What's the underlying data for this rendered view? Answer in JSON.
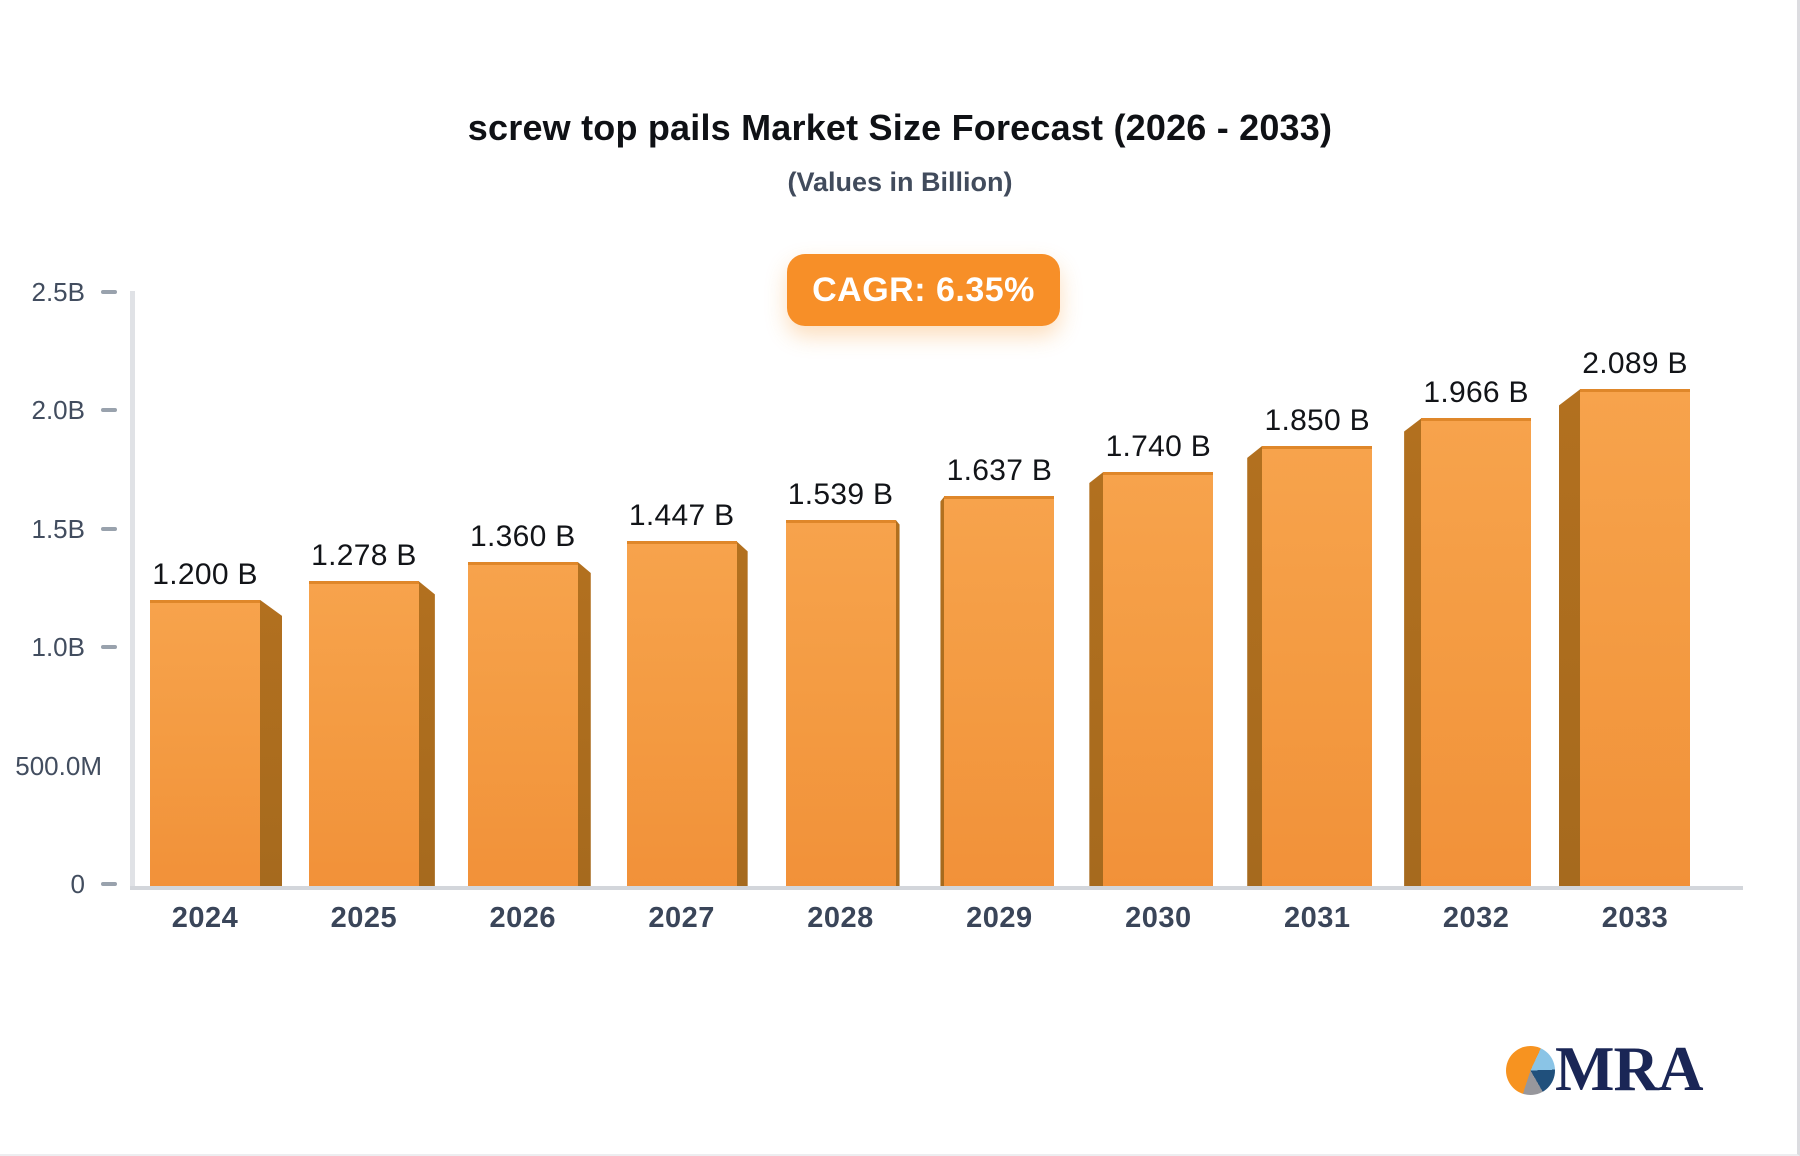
{
  "header": {
    "title": "screw top pails Market Size Forecast (2026 - 2033)",
    "subtitle": "(Values in Billion)"
  },
  "badge": {
    "label": "CAGR: 6.35%",
    "bg_color": "#f78f28",
    "text_color": "#ffffff"
  },
  "chart_data": {
    "type": "bar",
    "title": "screw top pails Market Size Forecast (2026 - 2033)",
    "subtitle": "(Values in Billion)",
    "cagr_pct": 6.35,
    "unit": "Billion",
    "categories": [
      "2024",
      "2025",
      "2026",
      "2027",
      "2028",
      "2029",
      "2030",
      "2031",
      "2032",
      "2033"
    ],
    "values": [
      1.2,
      1.278,
      1.36,
      1.447,
      1.539,
      1.637,
      1.74,
      1.85,
      1.966,
      2.089
    ],
    "value_labels": [
      "1.200 B",
      "1.278 B",
      "1.360 B",
      "1.447 B",
      "1.539 B",
      "1.637 B",
      "1.740 B",
      "1.850 B",
      "1.966 B",
      "2.089 B"
    ],
    "xlabel": "",
    "ylabel": "",
    "ylim": [
      0,
      2.5
    ],
    "grid": false,
    "legend": false,
    "y_ticks": [
      {
        "label": "2.5B",
        "value": 2.5,
        "dash": true
      },
      {
        "label": "2.0B",
        "value": 2.0,
        "dash": true
      },
      {
        "label": "1.5B",
        "value": 1.5,
        "dash": true
      },
      {
        "label": "1.0B",
        "value": 1.0,
        "dash": true
      },
      {
        "label": "500.0M",
        "value": 0.5,
        "dash": false
      },
      {
        "label": "0",
        "value": 0.0,
        "dash": true
      }
    ],
    "colors": {
      "bar_face_top": "#f7a34c",
      "bar_face_bottom": "#f29139",
      "bar_top_edge": "#df872a",
      "bar_side": "#ad6d20",
      "axis_line": "#e0e2e6",
      "tick_text": "#424d5f",
      "value_text": "#121418",
      "year_text": "#3a4559",
      "accent_orange": "#f78f28"
    }
  },
  "branding": {
    "logo_text": "MRA",
    "pie_colors": {
      "orange": "#f79320",
      "light_blue": "#8ac4e6",
      "navy": "#20507c",
      "gray": "#97979c"
    },
    "text_color": "#1a2656"
  }
}
